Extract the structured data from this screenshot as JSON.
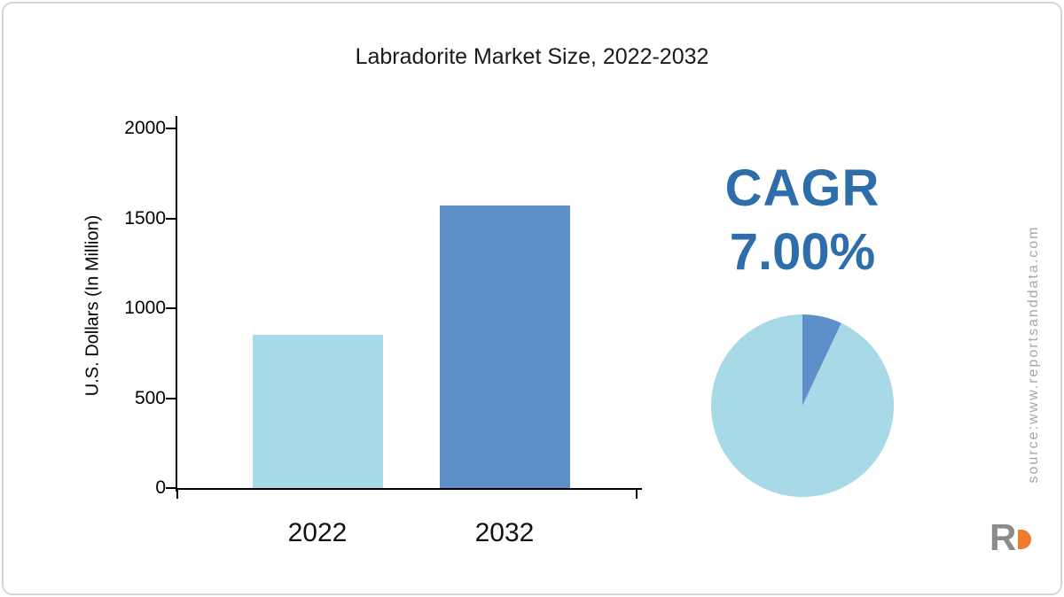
{
  "title": "Labradorite Market Size, 2022-2032",
  "cagr": {
    "label": "CAGR",
    "value": "7.00%",
    "percent": 7,
    "color": "#2d6da9"
  },
  "source": "source:www.reportsanddata.com",
  "logo": {
    "letter": "R"
  },
  "chart_data": [
    {
      "type": "bar",
      "categories": [
        "2022",
        "2032"
      ],
      "values": [
        850,
        1570
      ],
      "title": "Labradorite Market Size, 2022-2032",
      "xlabel": "",
      "ylabel": "U.S. Dollars (In Million)",
      "ylim": [
        0,
        2000
      ],
      "yticks": [
        0,
        500,
        1000,
        1500,
        2000
      ],
      "bar_colors": [
        "#a7d9e6",
        "#5f8fc9"
      ],
      "grid": false,
      "legend": false
    },
    {
      "type": "pie",
      "labels": [
        "CAGR 7.00%",
        "remainder"
      ],
      "values": [
        7,
        93
      ],
      "colors": [
        "#5f8fc9",
        "#a7d9e6"
      ],
      "start_angle_deg": -90,
      "direction": "clockwise"
    }
  ]
}
